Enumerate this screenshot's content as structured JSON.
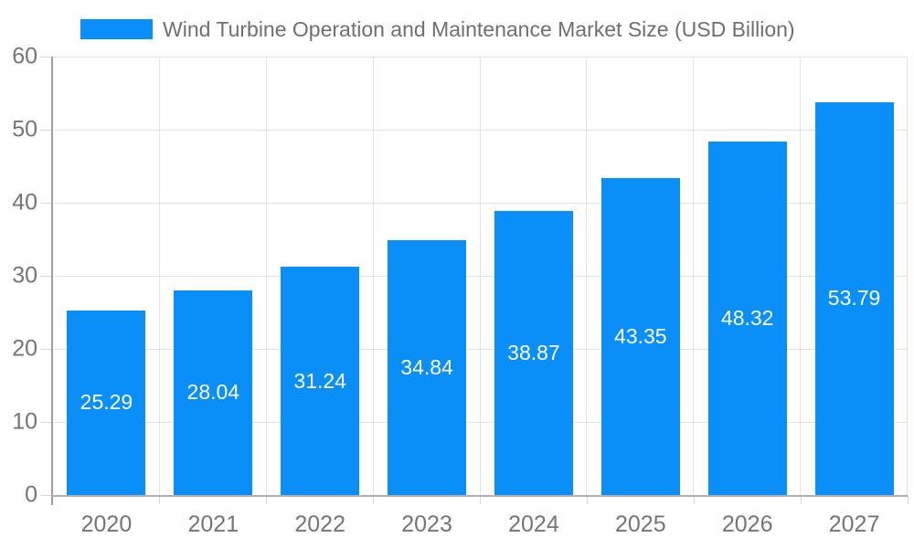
{
  "chart_data": {
    "type": "bar",
    "title": "Wind Turbine Operation and Maintenance Market Size (USD Billion)",
    "categories": [
      "2020",
      "2021",
      "2022",
      "2023",
      "2024",
      "2025",
      "2026",
      "2027"
    ],
    "values": [
      25.29,
      28.04,
      31.24,
      34.84,
      38.87,
      43.35,
      48.32,
      53.79
    ],
    "value_labels": [
      "25.29",
      "28.04",
      "31.24",
      "34.84",
      "38.87",
      "43.35",
      "48.32",
      "53.79"
    ],
    "ylim": [
      0,
      60
    ],
    "yticks": [
      0,
      10,
      20,
      30,
      40,
      50,
      60
    ],
    "ytick_labels": [
      "0",
      "10",
      "20",
      "30",
      "40",
      "50",
      "60"
    ],
    "xlabel": "",
    "ylabel": "",
    "grid": true,
    "legend_position": "top-left",
    "colors": {
      "bar": "#0a8ff8",
      "value_label": "#ffffff",
      "grid_line": "#e2e2e2",
      "tick_mark": "#d6d6d6",
      "axis_line_y": "#9e9e9e",
      "axis_line_x": "#b0b0b0",
      "tick_text": "#757575",
      "title_text": "#6f6f6f",
      "background": "#ffffff"
    }
  }
}
